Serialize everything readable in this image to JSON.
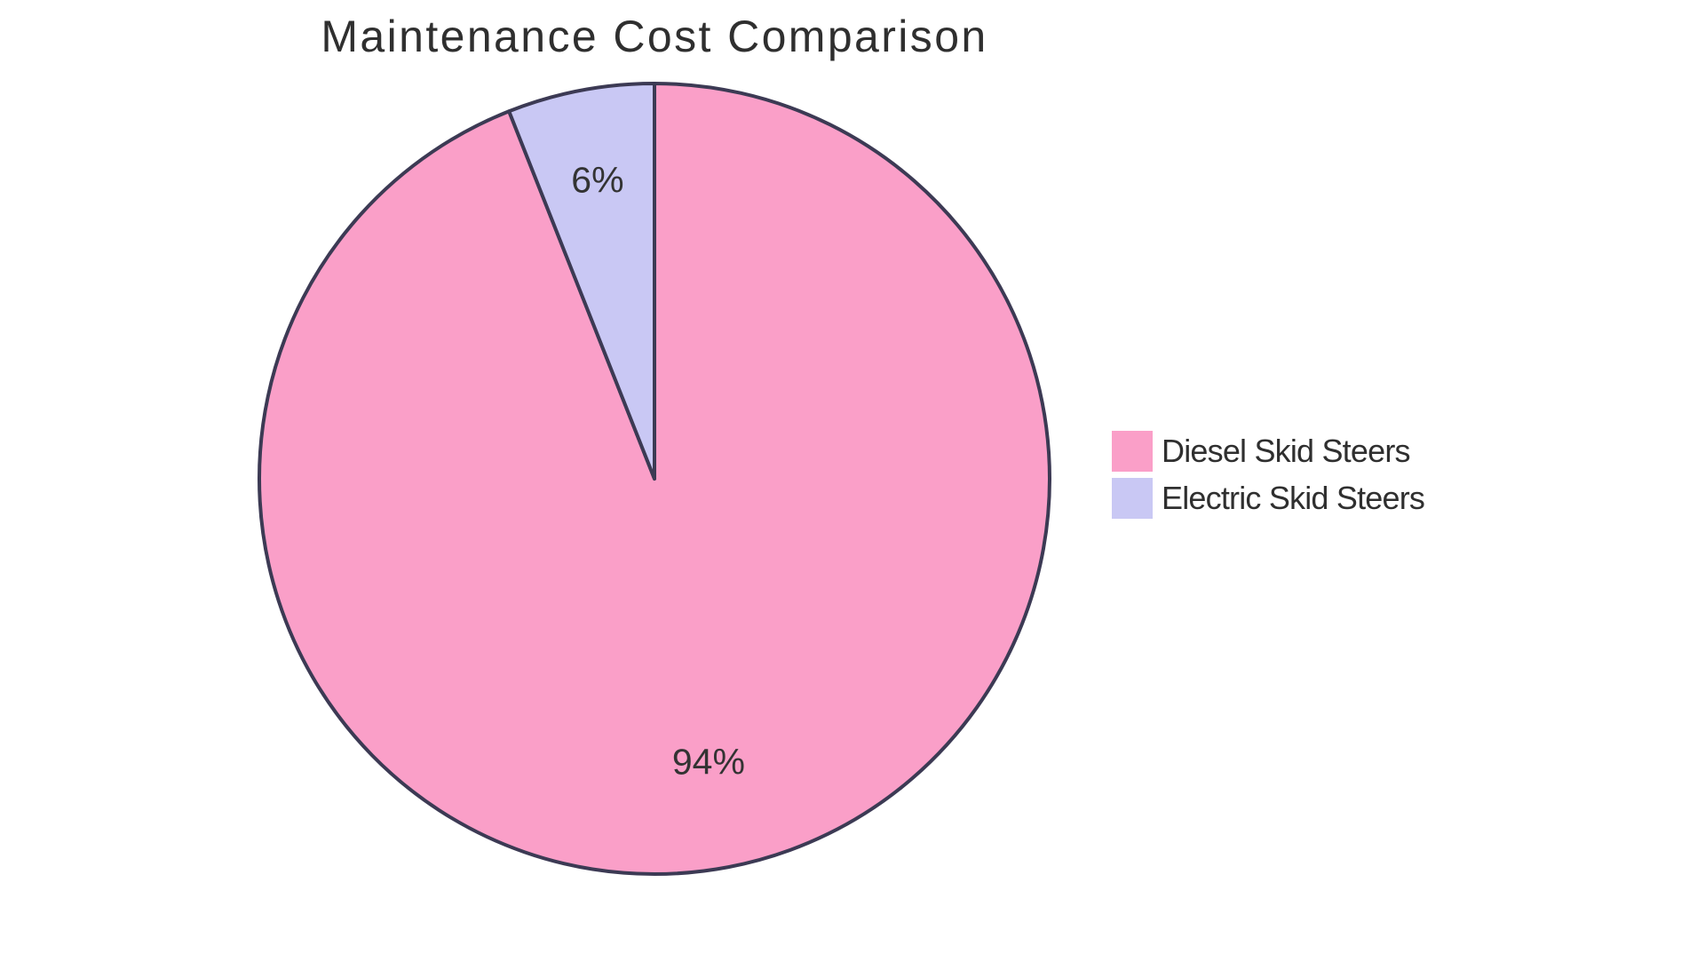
{
  "chart_data": {
    "type": "pie",
    "title": "Maintenance Cost Comparison",
    "labels": [
      "Diesel Skid Steers",
      "Electric Skid Steers"
    ],
    "values": [
      94,
      6
    ],
    "value_labels": [
      "94%",
      "6%"
    ],
    "colors": [
      "#FA9FC8",
      "#C9C8F4"
    ],
    "slice_border_color": "#3C3A54",
    "label_color": "#333333",
    "legend_position": "right",
    "start_angle_deg": 0,
    "direction": "clockwise"
  }
}
